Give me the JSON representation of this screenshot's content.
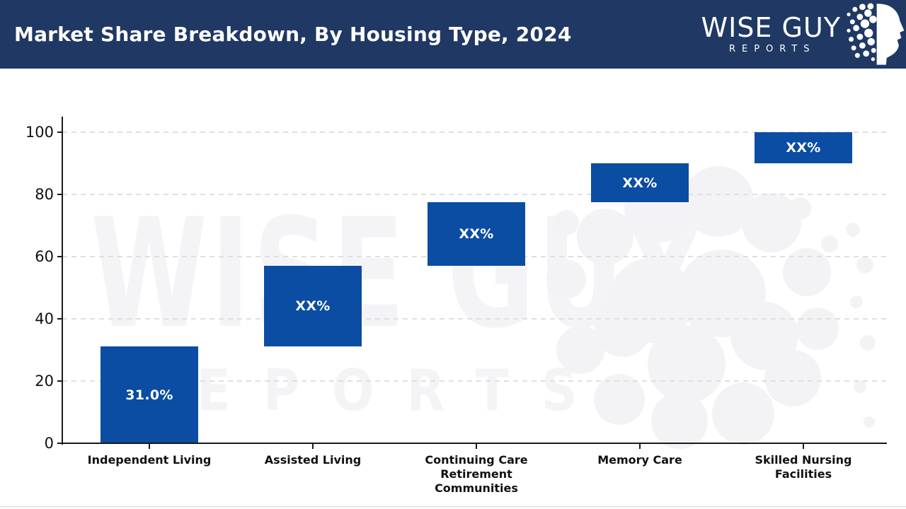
{
  "header": {
    "title": "Market Share Breakdown, By Housing Type, 2024",
    "logo": {
      "wordmark": "WISE GUY",
      "subtext": "REPORTS"
    },
    "colors": {
      "background": "#1F3864",
      "text": "#FFFFFF"
    }
  },
  "watermark": {
    "line1": "WISE GUY",
    "line2": "REPORTS"
  },
  "chart_data": {
    "type": "bar",
    "subtype": "waterfall",
    "title": "Market Share Breakdown, By Housing Type, 2024",
    "xlabel": "",
    "ylabel": "",
    "ylim": [
      0,
      105
    ],
    "yticks": [
      0,
      20,
      40,
      60,
      80,
      100
    ],
    "grid": "horizontal-dashed",
    "legend": "none",
    "bar_color": "#0B4DA2",
    "label_color": "#FFFFFF",
    "categories": [
      "Independent Living",
      "Assisted Living",
      "Continuing Care Retirement Communities",
      "Memory Care",
      "Skilled Nursing Facilities"
    ],
    "segments": [
      {
        "category": "Independent Living",
        "tick_lines": [
          "Independent Living"
        ],
        "start": 0,
        "end": 31,
        "span": 31.0,
        "value_label": "31.0%",
        "masked": false
      },
      {
        "category": "Assisted Living",
        "tick_lines": [
          "Assisted Living"
        ],
        "start": 31,
        "end": 57,
        "span": 26.0,
        "value_label": "XX%",
        "masked": true
      },
      {
        "category": "Continuing Care Retirement Communities",
        "tick_lines": [
          "Continuing Care",
          "Retirement",
          "Communities"
        ],
        "start": 57,
        "end": 77.5,
        "span": 20.5,
        "value_label": "XX%",
        "masked": true
      },
      {
        "category": "Memory Care",
        "tick_lines": [
          "Memory Care"
        ],
        "start": 77.5,
        "end": 90,
        "span": 12.5,
        "value_label": "XX%",
        "masked": true
      },
      {
        "category": "Skilled Nursing Facilities",
        "tick_lines": [
          "Skilled Nursing",
          "Facilities"
        ],
        "start": 90,
        "end": 100,
        "span": 10.0,
        "value_label": "XX%",
        "masked": true
      }
    ]
  }
}
